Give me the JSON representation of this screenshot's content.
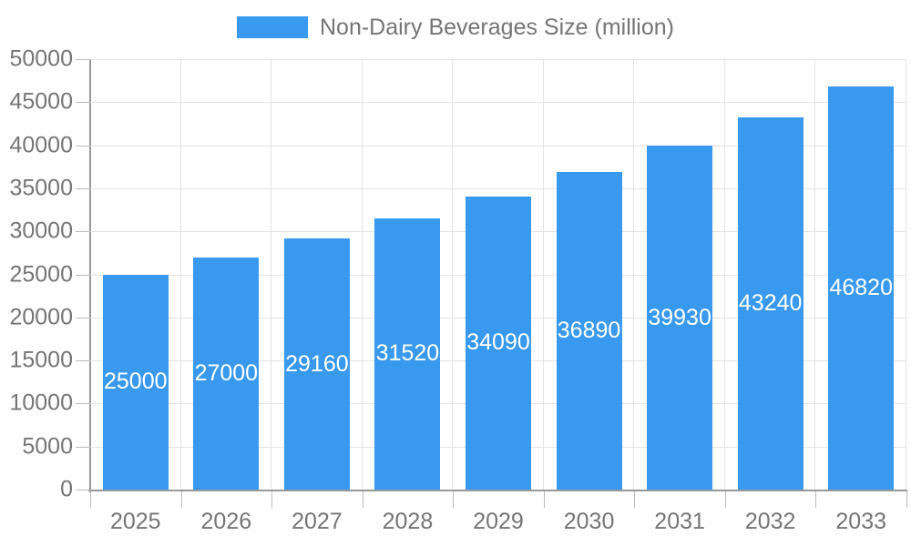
{
  "chart_data": {
    "type": "bar",
    "title": "",
    "series_name": "Non-Dairy Beverages Size (million)",
    "categories": [
      "2025",
      "2026",
      "2027",
      "2028",
      "2029",
      "2030",
      "2031",
      "2032",
      "2033"
    ],
    "values": [
      25000,
      27000,
      29160,
      31520,
      34090,
      36890,
      39930,
      43240,
      46820
    ],
    "value_labels_shown": true,
    "value_label_position": "inside-center",
    "xlabel": "",
    "ylabel": "",
    "ylim": [
      0,
      50000
    ],
    "y_ticks": [
      0,
      5000,
      10000,
      15000,
      20000,
      25000,
      30000,
      35000,
      40000,
      45000,
      50000
    ],
    "grid": true,
    "legend_position": "top-center",
    "colors": {
      "bar": "#3899EE",
      "value_label_text": "#FFFFFF",
      "axis_text": "#757575",
      "axis_line": "#999999",
      "gridline": "#E3E3E3",
      "tick": "#BBBBBB",
      "background": "#FFFFFF"
    }
  }
}
